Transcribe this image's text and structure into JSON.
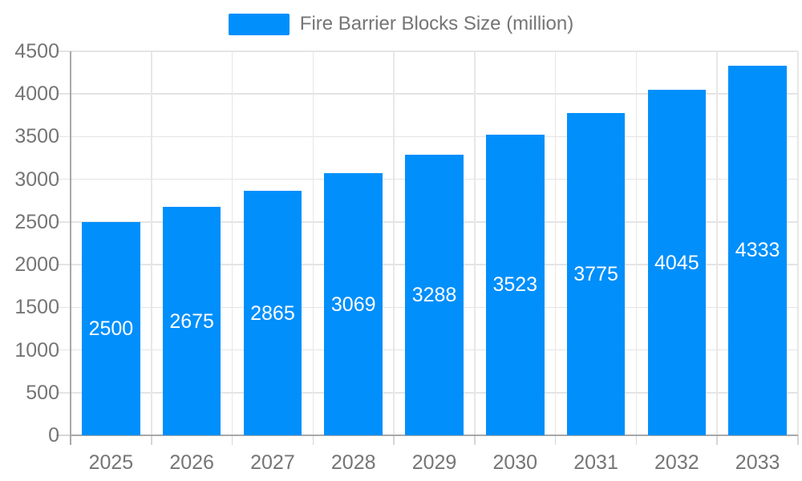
{
  "chart_data": {
    "type": "bar",
    "title": "Fire Barrier Blocks Size (million)",
    "categories": [
      "2025",
      "2026",
      "2027",
      "2028",
      "2029",
      "2030",
      "2031",
      "2032",
      "2033"
    ],
    "series": [
      {
        "name": "Fire Barrier Blocks Size (million)",
        "values": [
          2500,
          2675,
          2865,
          3069,
          3288,
          3523,
          3775,
          4045,
          4333
        ]
      }
    ],
    "xlabel": "",
    "ylabel": "",
    "ylim": [
      0,
      4500
    ],
    "ytick_step": 500,
    "grid": true,
    "legend_position": "top",
    "value_labels": "inside-center",
    "colors": {
      "bar": "#008FFB",
      "axis_label": "#757575",
      "value_label": "#ffffff",
      "gridline": "#e4e4e4",
      "axis_line": "#a8a8a8",
      "background": "#ffffff"
    }
  }
}
